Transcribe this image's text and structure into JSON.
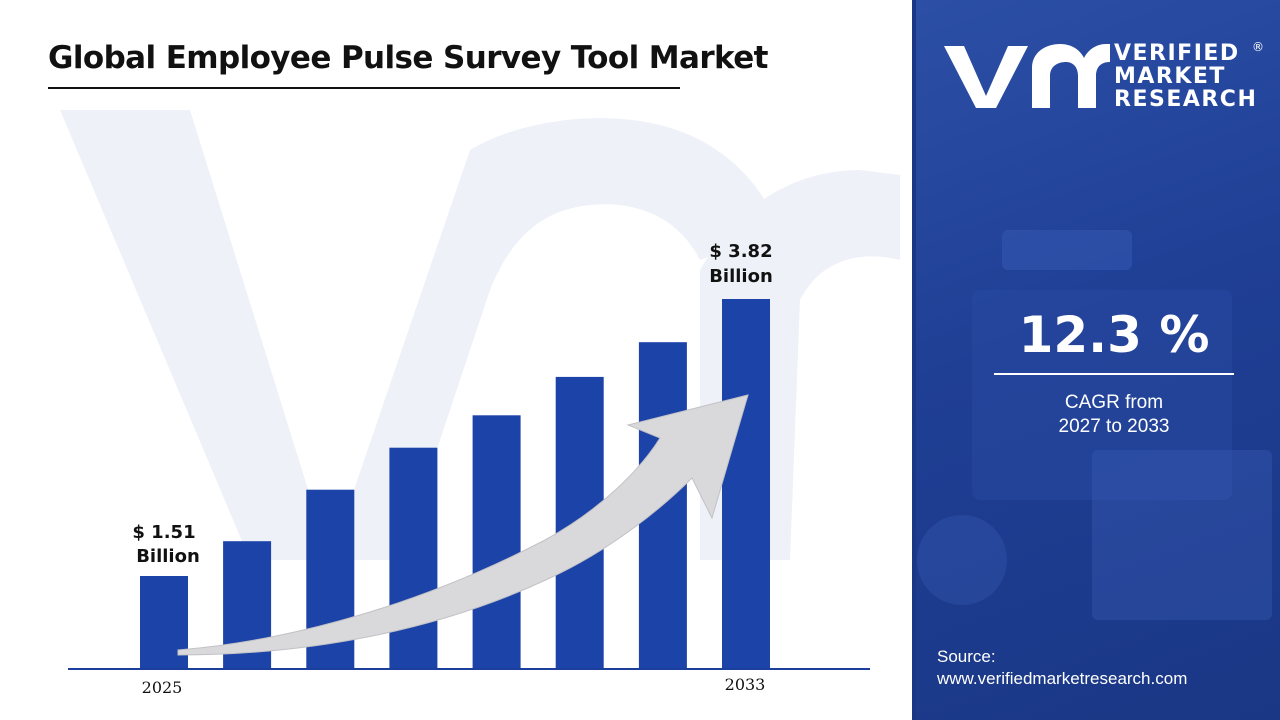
{
  "title": "Global Employee Pulse Survey Tool Market",
  "chart_data": {
    "type": "bar",
    "x_tick_labels": [
      "2025",
      "2033"
    ],
    "values": [
      1.51,
      1.8,
      2.23,
      2.58,
      2.85,
      3.17,
      3.46,
      3.82
    ],
    "value_labels": [
      {
        "line1": "$ 1.51",
        "line2": "Billion"
      },
      {
        "line1": "$ 3.82",
        "line2": "Billion"
      }
    ],
    "bar_color": "#1c43a8",
    "trend_arrow": true
  },
  "brand": {
    "line1": "VERIFIED",
    "line2": "MARKET",
    "line3": "RESEARCH",
    "registered": "®"
  },
  "cagr": {
    "value": "12.3 %",
    "label_line1": "CAGR from",
    "label_line2": "2027 to 2033"
  },
  "source": {
    "label": "Source:",
    "url": "www.verifiedmarketresearch.com"
  },
  "colors": {
    "panel_blue": "#1f3f95",
    "bar_blue": "#1c43a8",
    "watermark": "#eef1f8"
  }
}
